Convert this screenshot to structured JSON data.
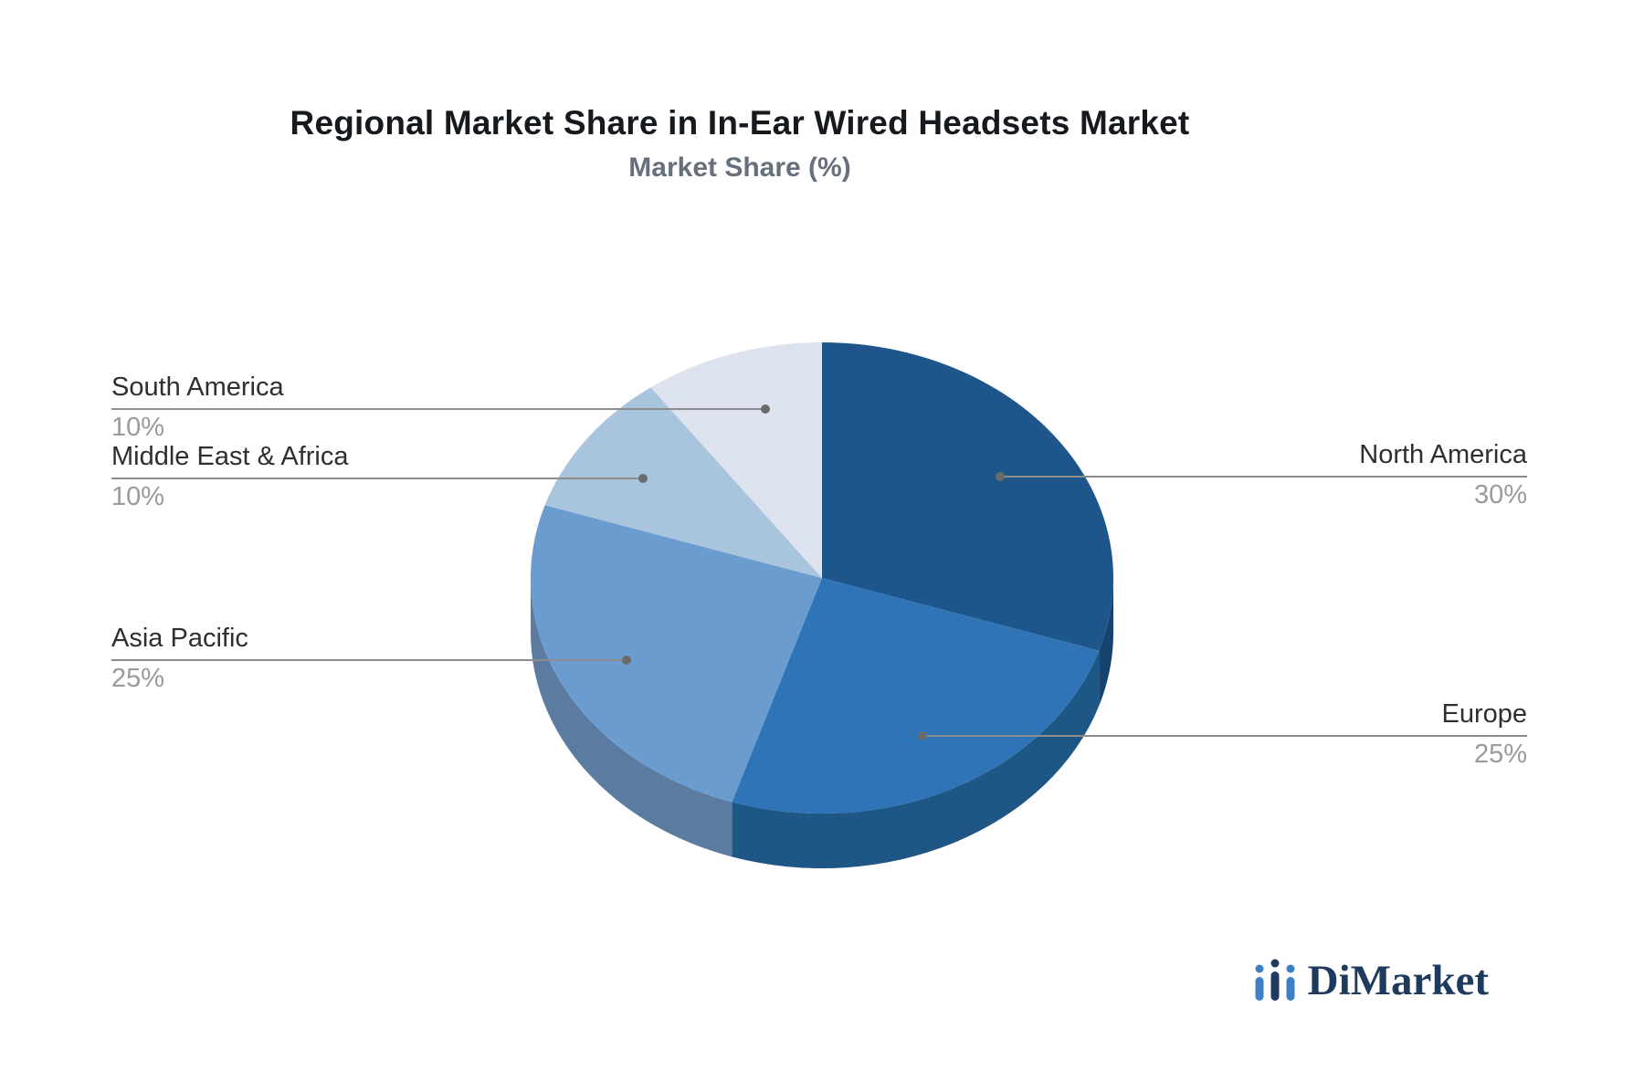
{
  "header": {
    "title": "Regional Market Share in In-Ear Wired Headsets Market",
    "subtitle": "Market Share (%)"
  },
  "branding": {
    "logo_text": "DiMarket",
    "logo_icon": "bar-chart-dots-icon"
  },
  "colors": {
    "background": "#FFFFFF",
    "title_text": "#16191D",
    "subtitle_text": "#66707C",
    "slice_name_text": "#2F2F2F",
    "slice_value_text": "#9A9A9A",
    "leader_line": "#8C8C8C",
    "leader_dot": "#6B6B6B",
    "logo_navy": "#1E3A5E",
    "logo_blue": "#3E80C6"
  },
  "chart_data": {
    "type": "pie",
    "style": "3d-pie",
    "title": "Regional Market Share in In-Ear Wired Headsets Market",
    "subtitle": "Market Share (%)",
    "unit": "%",
    "start_angle_deg": 0,
    "direction": "clockwise",
    "legend": "none",
    "categories": [
      "North America",
      "Europe",
      "Asia Pacific",
      "Middle East & Africa",
      "South America"
    ],
    "values": [
      30,
      25,
      25,
      10,
      10
    ],
    "slices": [
      {
        "name": "North America",
        "value": 30,
        "display": "30%",
        "color": "#1E568C",
        "side_color": "#16436D",
        "label_side": "right"
      },
      {
        "name": "Europe",
        "value": 25,
        "display": "25%",
        "color": "#2E74B6",
        "side_color": "#1E5686",
        "label_side": "right"
      },
      {
        "name": "Asia Pacific",
        "value": 25,
        "display": "25%",
        "color": "#6A9CCF",
        "side_color": "#5B7CA0",
        "label_side": "left"
      },
      {
        "name": "Middle East & Africa",
        "value": 10,
        "display": "10%",
        "color": "#A9C5DE",
        "side_color": "#87A4BF",
        "label_side": "left"
      },
      {
        "name": "South America",
        "value": 10,
        "display": "10%",
        "color": "#DDE3EE",
        "side_color": "#B1BAC9",
        "label_side": "left"
      }
    ]
  }
}
